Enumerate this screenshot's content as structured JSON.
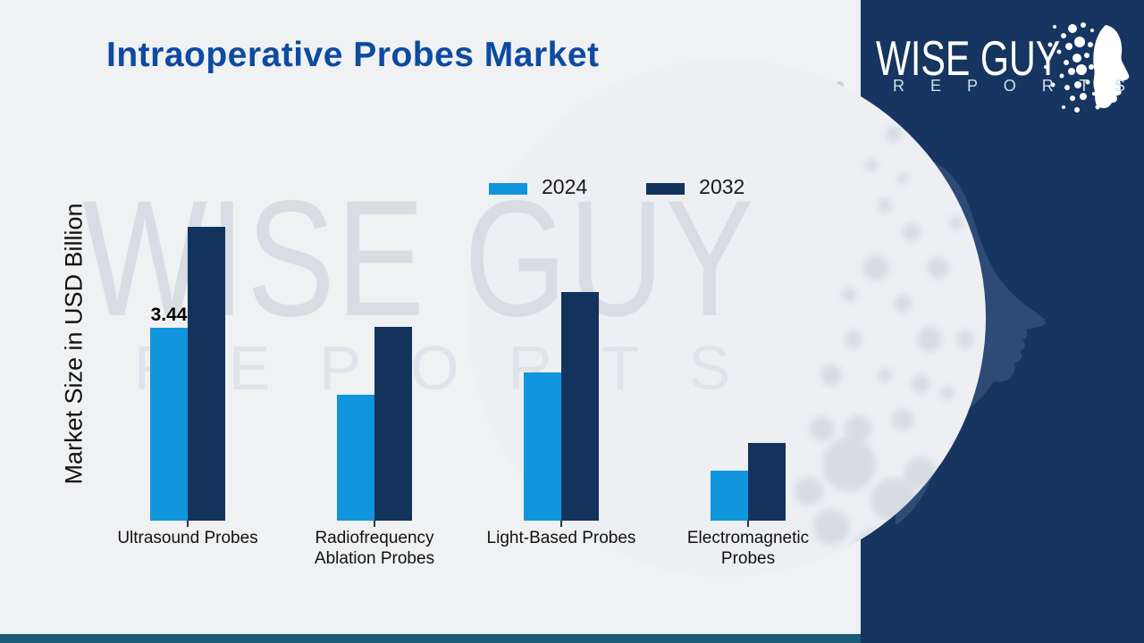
{
  "title": "Intraoperative Probes Market",
  "y_axis_label": "Market Size in USD Billion",
  "chart_data": {
    "type": "bar",
    "title": "Intraoperative Probes Market",
    "ylabel": "Market Size in USD Billion",
    "categories": [
      "Ultrasound Probes",
      "Radiofrequency Ablation Probes",
      "Light-Based Probes",
      "Electromagnetic Probes"
    ],
    "series": [
      {
        "name": "2024",
        "color": "#1195dc",
        "values": [
          3.44,
          2.25,
          2.64,
          0.89
        ]
      },
      {
        "name": "2032",
        "color": "#12335c",
        "values": [
          5.24,
          3.46,
          4.08,
          1.39
        ]
      }
    ],
    "ylim": [
      0,
      5.6
    ],
    "grid": false,
    "axis_lines": false,
    "legend_position": "top-center",
    "data_labels": [
      {
        "series": "2024",
        "category": "Ultrasound Probes",
        "value": "3.44"
      }
    ]
  },
  "legend": {
    "items": [
      {
        "label": "2024",
        "color": "#1195dc"
      },
      {
        "label": "2032",
        "color": "#12335c"
      }
    ]
  },
  "watermark": {
    "line1": "WISE GUY",
    "line2": "REPORTS",
    "line1_color": "#d9dce3",
    "line2_color": "#e0e3e9",
    "dot_color": "#ccd3dd"
  },
  "logo": {
    "line1": "WISE GUY",
    "line2": "R E P O R T S",
    "panel_color": "#163560",
    "face_silhouette_color": "#2e4b75",
    "circle_color": "#edeff3",
    "circle_blob_color": "#d7dbe2",
    "dot_color": "#ffffff"
  },
  "colors": {
    "page_background": "#f0f1f3",
    "title": "#0c4ba0",
    "bottom_bar": "#1d5c78",
    "text": "#121212"
  }
}
